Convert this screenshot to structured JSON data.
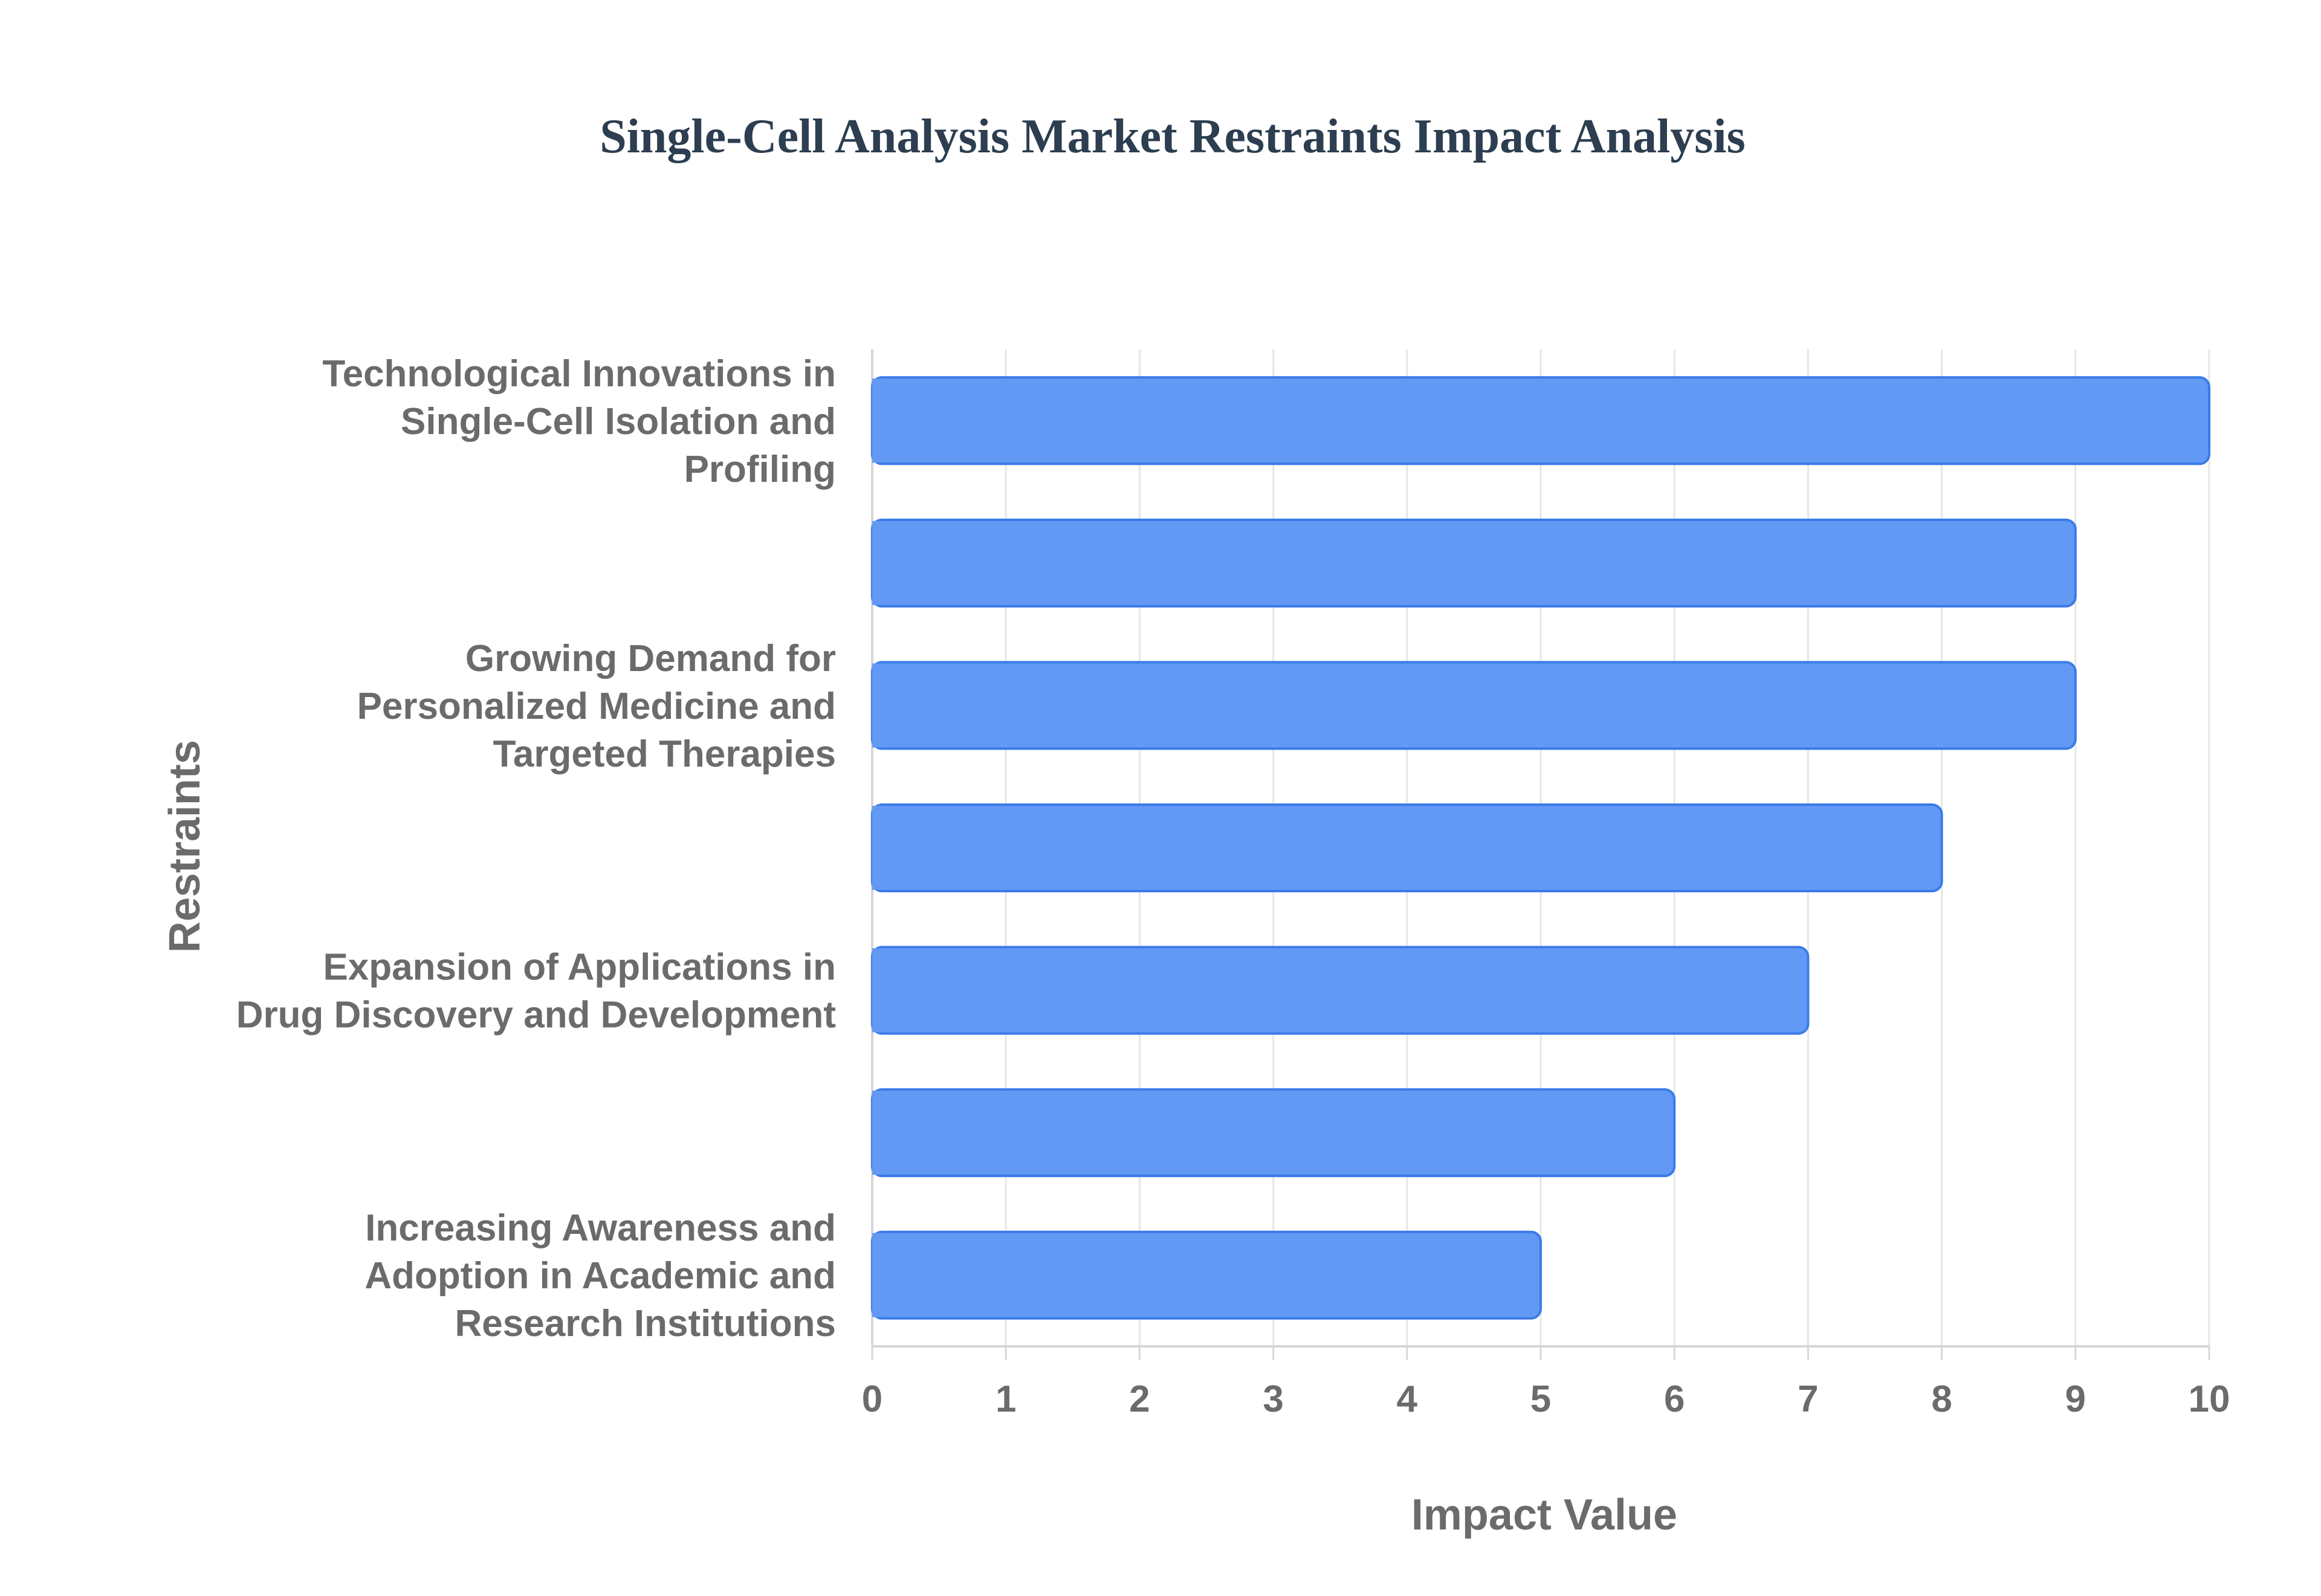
{
  "chart_data": {
    "type": "bar",
    "orientation": "horizontal",
    "title": "Single-Cell Analysis Market Restraints Impact Analysis",
    "xlabel": "Impact Value",
    "ylabel": "Restraints",
    "xlim": [
      0,
      10
    ],
    "x_ticks": [
      "0",
      "1",
      "2",
      "3",
      "4",
      "5",
      "6",
      "7",
      "8",
      "9",
      "10"
    ],
    "grid": true,
    "bar_color": "#6199f5",
    "bar_border_color": "#3b7be8",
    "categories": [
      "Technological Innovations in Single-Cell Isolation and Profiling",
      "",
      "Growing Demand for Personalized Medicine and Targeted Therapies",
      "",
      "Expansion of Applications in Drug Discovery and Development",
      "",
      "Increasing Awareness and Adoption in Academic and Research Institutions"
    ],
    "category_label_lines": [
      [
        "Technological Innovations in",
        "Single-Cell Isolation and",
        "Profiling"
      ],
      [],
      [
        "Growing Demand for",
        "Personalized Medicine and",
        "Targeted Therapies"
      ],
      [],
      [
        "Expansion of Applications in",
        "Drug Discovery and Development"
      ],
      [],
      [
        "Increasing Awareness and",
        "Adoption in Academic and",
        "Research Institutions"
      ]
    ],
    "values": [
      10,
      9,
      9,
      8,
      7,
      6,
      5
    ]
  }
}
